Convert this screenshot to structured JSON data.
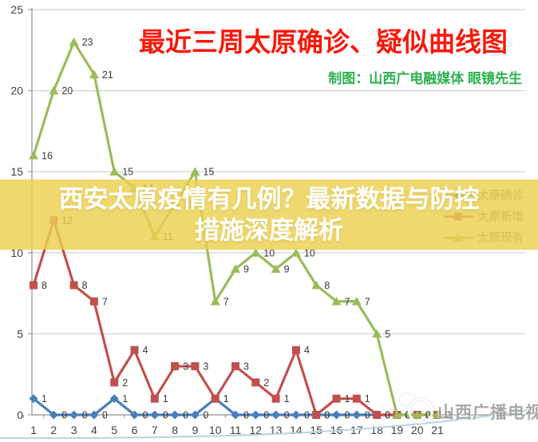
{
  "header": {
    "title": "最近三周太原确诊、疑似曲线图",
    "subtitle": "制图：山西广电融媒体 眼镜先生"
  },
  "overlay_banner": {
    "line1": "西安太原疫情有几例？最新数据与防控",
    "line2": "措施深度解析"
  },
  "watermark": {
    "logo_icon": "shanxi-broadcast-logo-icon",
    "text": "山西广播电视台"
  },
  "colors": {
    "title_text": "#f8190b",
    "subtitle_text": "#2cb14e",
    "banner_bg": "rgba(236,208,78,0.82)",
    "banner_text": "#ffffff",
    "series_confirmed_blue": "#4a7ebb",
    "series_new_red": "#c0504d",
    "series_active_green": "#9bbb59",
    "legend_text": "#6e6e6e",
    "gridline": "#c9c9c9",
    "axis": "#8f8f8f",
    "data_label": "#3a3a3a",
    "tick_label": "#404040",
    "watermark_text": "#9a9a9a",
    "bottom_curve": "#b7d3e0"
  },
  "chart_data": {
    "type": "line",
    "title": "最近三周太原确诊、疑似曲线图",
    "xlabel": "",
    "ylabel": "",
    "x": [
      1,
      2,
      3,
      4,
      5,
      6,
      7,
      8,
      9,
      10,
      11,
      12,
      13,
      14,
      15,
      16,
      17,
      18,
      19,
      20,
      21
    ],
    "ylim": [
      0,
      25
    ],
    "yticks": [
      0,
      5,
      10,
      15,
      20,
      25
    ],
    "grid": "horizontal",
    "legend_position": "right-middle",
    "data_labels": true,
    "series": [
      {
        "name": "太原确诊",
        "marker": "diamond",
        "color": "#4a7ebb",
        "values": [
          1,
          0,
          0,
          0,
          1,
          0,
          0,
          0,
          0,
          1,
          0,
          0,
          0,
          0,
          0,
          0,
          0,
          0,
          0,
          0,
          0
        ]
      },
      {
        "name": "太原新增",
        "marker": "square",
        "color": "#c0504d",
        "values": [
          8,
          12,
          8,
          7,
          2,
          4,
          1,
          3,
          3,
          1,
          3,
          2,
          1,
          4,
          0,
          1,
          1,
          0,
          0,
          0,
          0
        ]
      },
      {
        "name": "太原现有",
        "marker": "triangle",
        "color": "#9bbb59",
        "values": [
          16,
          20,
          23,
          21,
          15,
          14,
          11,
          13,
          15,
          7,
          9,
          10,
          9,
          10,
          8,
          7,
          7,
          5,
          0,
          0,
          0
        ]
      }
    ]
  }
}
